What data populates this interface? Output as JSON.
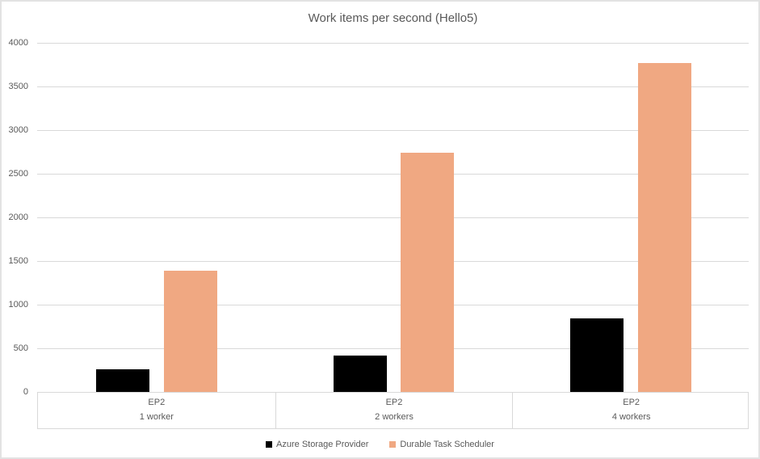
{
  "colors": {
    "background": "#FFFFFF",
    "frame_border": "#E2E2E2",
    "gridline": "#D9D9D9",
    "text": "#595959",
    "azure_storage_provider": "#000000",
    "durable_task_scheduler": "#F0A882"
  },
  "chart_data": {
    "type": "bar",
    "title": "Work items per second (Hello5)",
    "categories": [
      {
        "sku": "EP2",
        "workers": "1 worker"
      },
      {
        "sku": "EP2",
        "workers": "2 workers"
      },
      {
        "sku": "EP2",
        "workers": "4 workers"
      }
    ],
    "series": [
      {
        "name": "Azure Storage Provider",
        "color": "#000000",
        "values": [
          260,
          420,
          840
        ]
      },
      {
        "name": "Durable Task Scheduler",
        "color": "#F0A882",
        "values": [
          1390,
          2740,
          3770
        ]
      }
    ],
    "xlabel": "",
    "ylabel": "",
    "ylim": [
      0,
      4000
    ],
    "yticks": [
      0,
      500,
      1000,
      1500,
      2000,
      2500,
      3000,
      3500,
      4000
    ],
    "grid": "horizontal",
    "legend_position": "bottom"
  }
}
